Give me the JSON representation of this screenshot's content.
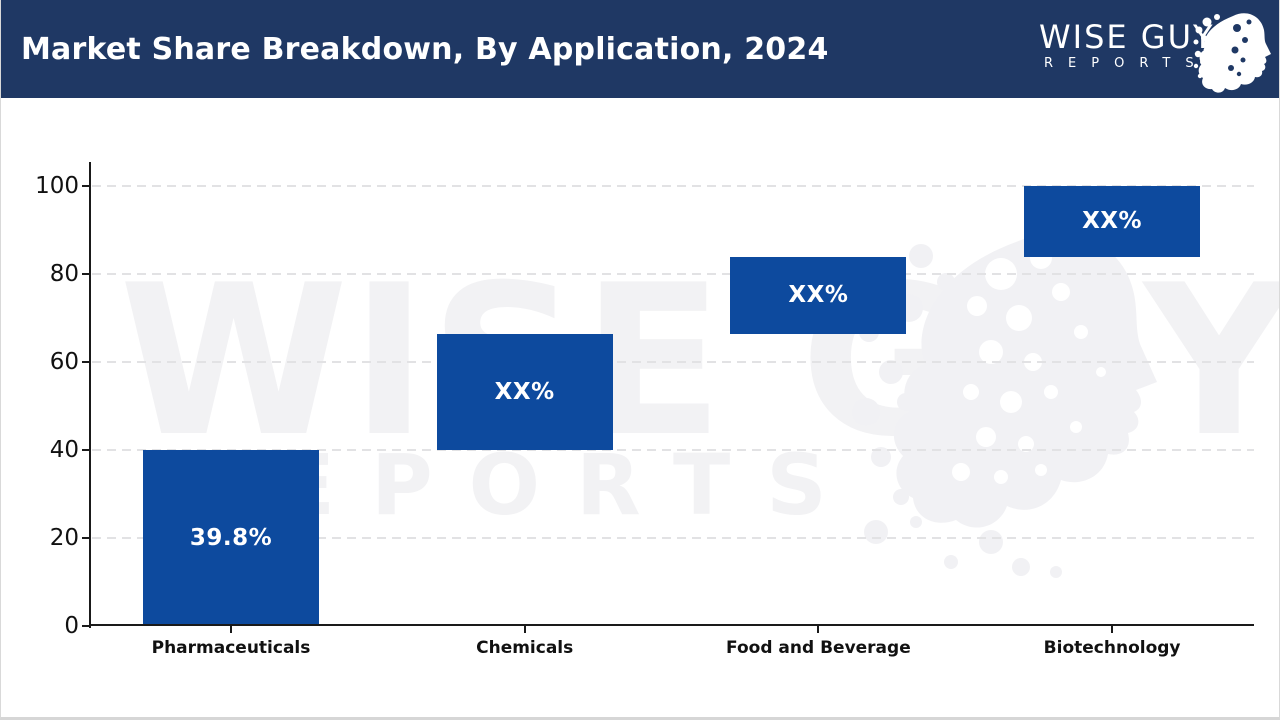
{
  "header": {
    "title": "Market Share Breakdown, By Application, 2024"
  },
  "logo": {
    "line1": "WISE GUY",
    "line2": "REPORTS"
  },
  "watermark": {
    "line1": "WISE GUY",
    "line2": "REPORTS"
  },
  "colors": {
    "header_bg": "#1F3864",
    "bar_blue": "#0D4A9E",
    "grid_gray": "#E2E2E4",
    "watermark_gray": "#F2F2F4",
    "axis_black": "#1A1A1A"
  },
  "chart_data": {
    "type": "bar",
    "subtype": "waterfall-stacked-percentage",
    "title": "Market Share Breakdown, By Application, 2024",
    "unit": "%",
    "categories": [
      "Pharmaceuticals",
      "Chemicals",
      "Food and Beverage",
      "Biotechnology"
    ],
    "segments": [
      {
        "category": "Pharmaceuticals",
        "start": 0,
        "end": 39.8,
        "label": "39.8%"
      },
      {
        "category": "Chemicals",
        "start": 39.8,
        "end": 66.3,
        "label": "XX%"
      },
      {
        "category": "Food and Beverage",
        "start": 66.3,
        "end": 83.8,
        "label": "XX%"
      },
      {
        "category": "Biotechnology",
        "start": 83.8,
        "end": 100,
        "label": "XX%"
      }
    ],
    "yticks": [
      0,
      20,
      40,
      60,
      80,
      100
    ],
    "ylim": [
      0,
      105
    ],
    "xlabel": "",
    "ylabel": "",
    "grid": "horizontal-dashed",
    "legend": "none",
    "bar_color": "#0D4A9E"
  }
}
